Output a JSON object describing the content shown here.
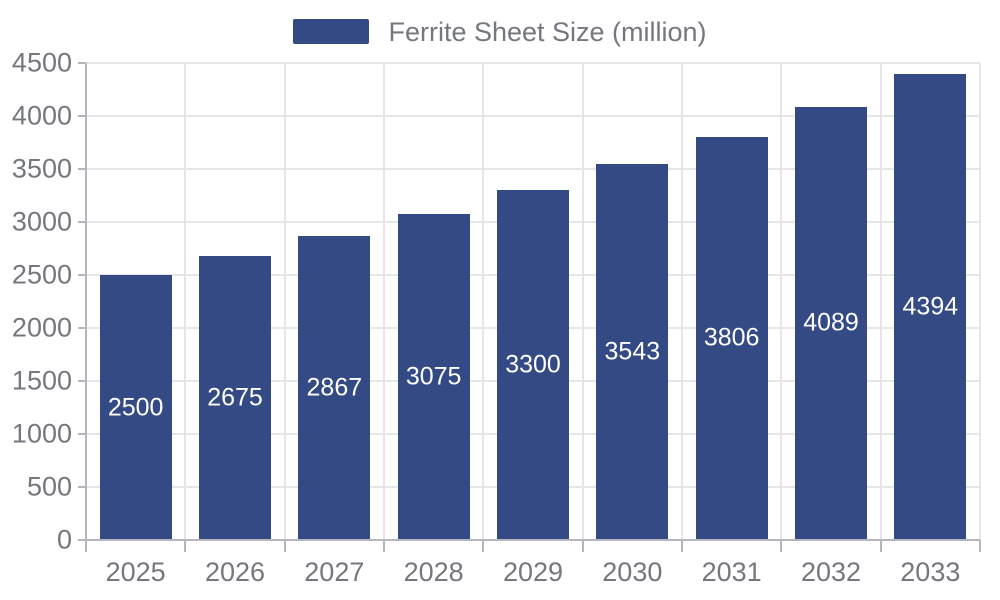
{
  "chart_data": {
    "type": "bar",
    "title": "Ferrite Sheet Size (million)",
    "series_name": "Ferrite Sheet Size (million)",
    "categories": [
      "2025",
      "2026",
      "2027",
      "2028",
      "2029",
      "2030",
      "2031",
      "2032",
      "2033"
    ],
    "values": [
      2500,
      2675,
      2867,
      3075,
      3300,
      3543,
      3806,
      4089,
      4394
    ],
    "xlabel": "",
    "ylabel": "",
    "ylim": [
      0,
      4500
    ],
    "yticks": [
      0,
      500,
      1000,
      1500,
      2000,
      2500,
      3000,
      3500,
      4000,
      4500
    ],
    "grid": true,
    "legend_position": "top-center",
    "value_labels_position": "inside-center",
    "colors": {
      "bar_fill": "#344a85",
      "bar_value_text": "#ffffff",
      "axis_text": "#74777d",
      "legend_text": "#74777d",
      "axis_line": "#b4b6bb",
      "grid_line": "#e5e6ea",
      "background": "#ffffff"
    }
  }
}
